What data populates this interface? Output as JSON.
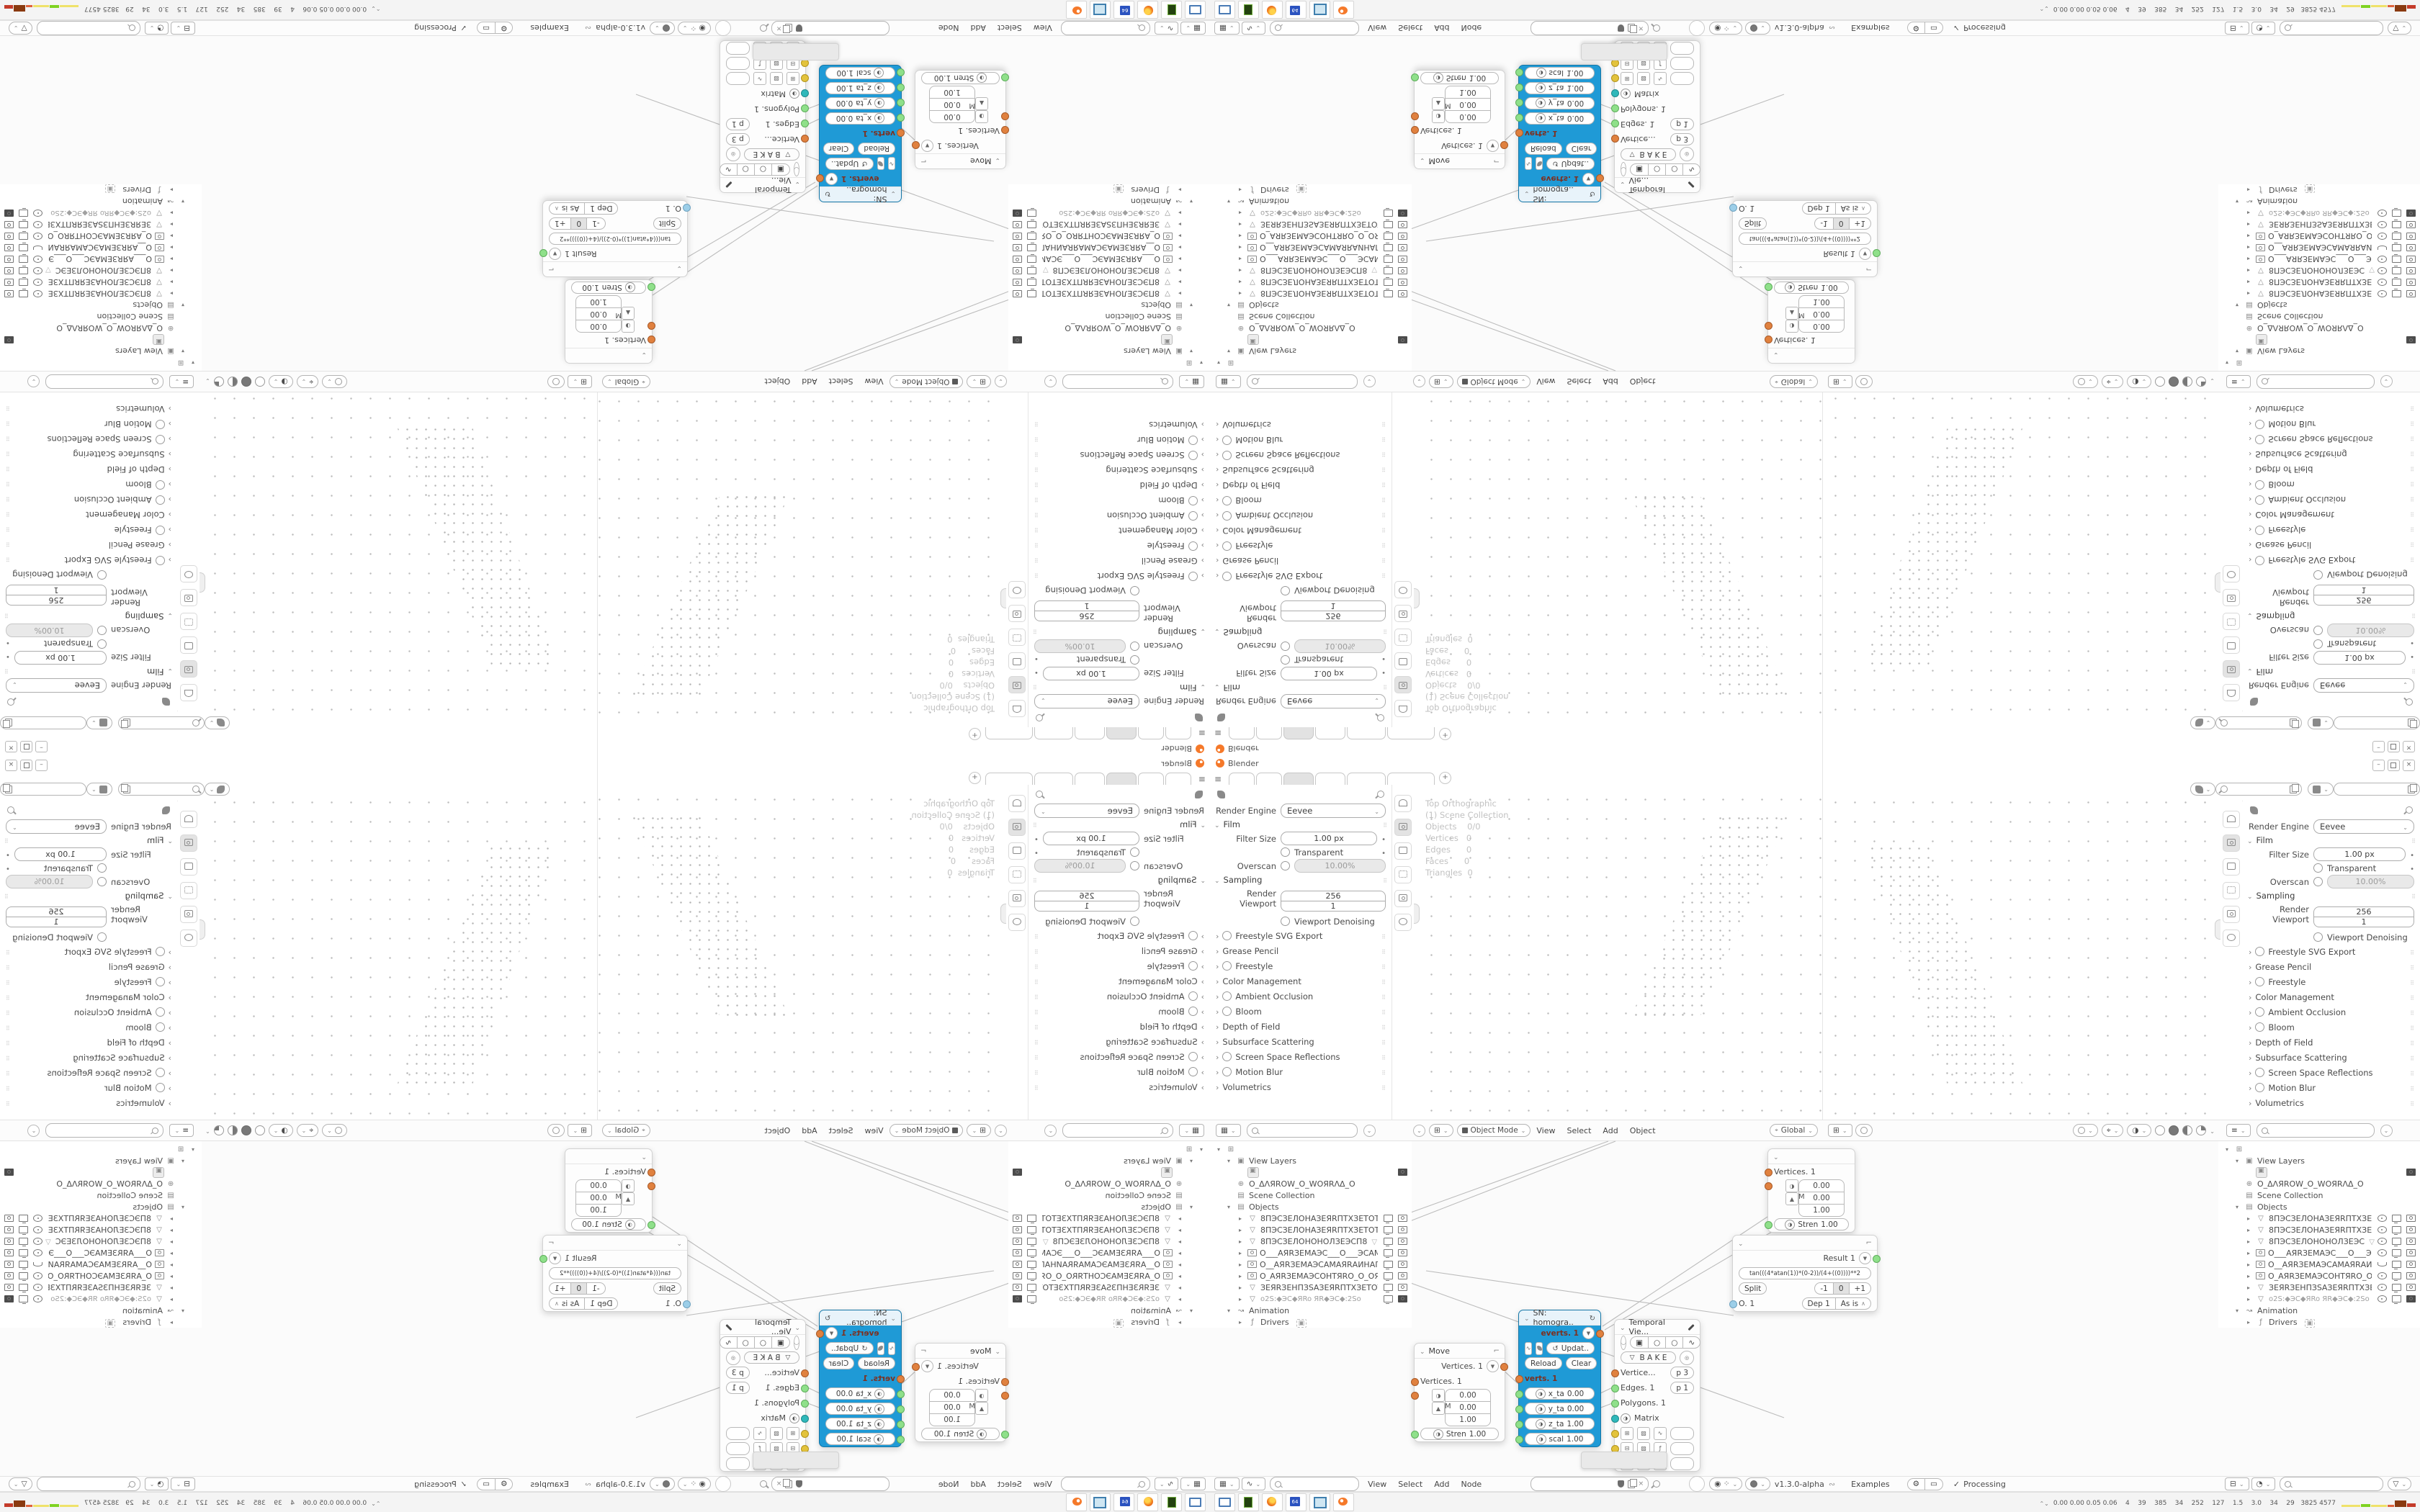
{
  "app": {
    "window_title": "Blender",
    "version": "v1.3.0-alpha",
    "examples_label": "Examples",
    "processing_label": "Processing"
  },
  "colors": {
    "accent_blue": "#1f9ad6",
    "socket_orange": "#e0813f",
    "socket_green": "#8fe08a",
    "socket_teal": "#2fb8ba",
    "socket_yellow": "#e3c33c",
    "socket_lightblue": "#9ccee8"
  },
  "workspace_tabs": {
    "count": 6,
    "active_index": 2
  },
  "properties": {
    "render_engine_label": "Render Engine",
    "render_engine_value": "Eevee",
    "film_label": "Film",
    "filter_size_label": "Filter Size",
    "filter_size_value": "1.00 px",
    "transparent_label": "Transparent",
    "overscan_label": "Overscan",
    "overscan_value": "10.00%",
    "sampling_label": "Sampling",
    "render_label": "Render",
    "render_value": "256",
    "viewport_label": "Viewport",
    "viewport_value": "1",
    "denoising_label": "Viewport Denoising",
    "sections": [
      {
        "label": "Freestyle SVG Export",
        "cb": "cb"
      },
      {
        "label": "Grease Pencil",
        "cb": "nocb"
      },
      {
        "label": "Freestyle",
        "cb": "cb"
      },
      {
        "label": "Color Management",
        "cb": "nocb"
      },
      {
        "label": "Ambient Occlusion",
        "cb": "cb"
      },
      {
        "label": "Bloom",
        "cb": "cb"
      },
      {
        "label": "Depth of Field",
        "cb": "nocb"
      },
      {
        "label": "Subsurface Scattering",
        "cb": "nocb"
      },
      {
        "label": "Screen Space Reflections",
        "cb": "cb"
      },
      {
        "label": "Motion Blur",
        "cb": "cb"
      },
      {
        "label": "Volumetrics",
        "cb": "nocb"
      }
    ]
  },
  "viewport": {
    "overlay": [
      {
        "t": "Top Orthographic"
      },
      {
        "t": "(1) Scene Collection"
      },
      {
        "t": ""
      },
      {
        "t": "Objects    0/0"
      },
      {
        "t": "Vertices   0"
      },
      {
        "t": "Edges      0"
      },
      {
        "t": "Faces      0"
      },
      {
        "t": "Triangles  0"
      }
    ],
    "header": {
      "mode": "Object Mode",
      "menus": [
        {
          "t": "View"
        },
        {
          "t": "Select"
        },
        {
          "t": "Add"
        },
        {
          "t": "Object"
        }
      ],
      "transform": "Global"
    }
  },
  "node_editor": {
    "menus": [
      {
        "t": "View"
      },
      {
        "t": "Select"
      },
      {
        "t": "Add"
      },
      {
        "t": "Node"
      }
    ],
    "nodes": {
      "move": {
        "title": "Move",
        "out_label": "Vertices. 1",
        "in_label": "Vertices. 1",
        "x": "0.00",
        "m_label": "M",
        "y": "0.00",
        "z": "1.00",
        "stren_label": "Stren",
        "stren_value": "1.00"
      },
      "sn": {
        "title": "SN: homogra..",
        "everts_label": "everts. 1",
        "update_label": "Updat..",
        "reload_label": "Reload",
        "clear_label": "Clear",
        "verts_label": "verts. 1",
        "fields": [
          [
            "x_ta",
            "0.00"
          ],
          [
            "y_ta",
            "0.00"
          ],
          [
            "z_ta",
            "1.00"
          ],
          [
            "scal",
            "1.00"
          ]
        ]
      },
      "temporal": {
        "title": "Temporal Vie...",
        "bake_label": "B A K E",
        "vertices_label": "Vertice...",
        "vertices_chip": "p  3",
        "edges_label": "Edges. 1",
        "edges_chip": "p  1",
        "polygons_label": "Polygons. 1",
        "matrix_label": "Matrix"
      },
      "formula": {
        "result_label": "Result 1",
        "expression": "tan(((4*atan(1))*(0-2))/(4+((0))))**2",
        "split_label": "Split",
        "minus": "-1",
        "zero": "0",
        "plus": "+1",
        "o_label": "O. 1",
        "dep_label": "Dep 1",
        "wrap_label": "As is"
      }
    },
    "links": [
      [
        553,
        535,
        240,
        648
      ],
      [
        563,
        535,
        252,
        656
      ],
      [
        240,
        718,
        797,
        919
      ],
      [
        774,
        640,
        545,
        792
      ],
      [
        790,
        655,
        548,
        797
      ],
      [
        404,
        850,
        428,
        872
      ],
      [
        540,
        886,
        561,
        876
      ],
      [
        540,
        906,
        561,
        898
      ],
      [
        300,
        715,
        727,
        777
      ]
    ]
  },
  "outliner": {
    "rows": [
      {
        "ind": "i0",
        "arrow": "a-open",
        "icon": "ic-root",
        "name": "",
        "eye": "e-none",
        "mon": "m-none",
        "cam": "c-none"
      },
      {
        "ind": "i1",
        "arrow": "a-open",
        "icon": "ic-vl",
        "name": "View Layers",
        "eye": "e-none",
        "mon": "m-none",
        "cam": "c-none"
      },
      {
        "ind": "i2",
        "arrow": "",
        "icon": "ic-btn",
        "name": "",
        "eye": "e-none",
        "mon": "m-none",
        "cam": "c-fill"
      },
      {
        "ind": "i1",
        "arrow": "",
        "icon": "ic-wld",
        "name": "O_ΔΛЯROW_O_WOЯRΛΔ_O",
        "eye": "e-none",
        "mon": "m-none",
        "cam": "c-none"
      },
      {
        "ind": "i1",
        "arrow": "",
        "icon": "ic-coll",
        "name": "Scene Collection",
        "eye": "e-none",
        "mon": "m-none",
        "cam": "c-none"
      },
      {
        "ind": "i1",
        "arrow": "a-open",
        "icon": "ic-coll",
        "name": "Objects",
        "eye": "e-none",
        "mon": "m-none",
        "cam": "c-none"
      },
      {
        "ind": "i2",
        "arrow": "a-clsd",
        "icon": "ic-mesh",
        "name": "8ПЭСЗЕЛОНАЗЕЯRПТХЗЕТОТЗЕХ(",
        "eye": "e-open",
        "mon": "m-on",
        "cam": "c-on"
      },
      {
        "ind": "i2",
        "arrow": "a-clsd",
        "icon": "ic-mesh",
        "name": "8ПЭСЗЕЛОНАЗЕЯRПТХЗЕТОТЗЕХ",
        "eye": "e-open",
        "mon": "m-on",
        "cam": "c-on"
      },
      {
        "ind": "i2",
        "arrow": "a-clsd",
        "icon": "ic-mesh",
        "name": "8ПЭСЗЕЛОНОНОЛЗЕЭСП8",
        "extra": "omod",
        "eye": "e-open",
        "mon": "m-on",
        "cam": "c-on"
      },
      {
        "ind": "i2",
        "arrow": "a-clsd",
        "icon": "ic-camo",
        "name": "O___АЯRЗЕМАЭС___O___ЭСАМЗЕ",
        "eye": "e-open",
        "mon": "m-on",
        "cam": "c-on"
      },
      {
        "ind": "i2",
        "arrow": "a-clsd",
        "icon": "ic-camo",
        "name": "O__АЯRЗЕМАЭСАМАЯRАИНАП__O_",
        "eye": "e-clsd",
        "mon": "m-on",
        "cam": "c-on"
      },
      {
        "ind": "i2",
        "arrow": "a-clsd",
        "icon": "ic-camo",
        "name": "O_АЯRЗЕМАЭСОНТЯRO_O_ОЯRТНЭ(",
        "eye": "e-open",
        "mon": "m-on",
        "cam": "c-on"
      },
      {
        "ind": "i2",
        "arrow": "a-clsd",
        "icon": "ic-mesh",
        "name": "ЗЕЯRЗЕНПЗSАЗЕЯRПТХЗЕТОТЗЕ(",
        "eye": "e-open",
        "mon": "m-on",
        "cam": "c-on"
      },
      {
        "ind": "i2",
        "arrow": "a-clsd",
        "icon": "ic-mesh",
        "name": "o2S:◆ЭС◆ЯRo ЯR◆ЭС◆:2So",
        "cls": "n-dim",
        "eye": "e-open",
        "mon": "m-on",
        "cam": "c-fill"
      },
      {
        "ind": "i1",
        "arrow": "a-open",
        "icon": "ic-anim",
        "name": "Animation",
        "eye": "e-none",
        "mon": "m-none",
        "cam": "c-none"
      },
      {
        "ind": "i2",
        "arrow": "a-clsd",
        "icon": "ic-drv",
        "name": "Drivers",
        "extra": "obox",
        "eye": "e-none",
        "mon": "m-none",
        "cam": "c-none"
      }
    ]
  },
  "taskbar": {
    "icons": [
      {
        "cls": "tb-monitor",
        "name": "system-settings-icon"
      },
      {
        "cls": "tb-pkg",
        "name": "package-manager-icon"
      },
      {
        "cls": "tb-firefox",
        "name": "firefox-icon"
      },
      {
        "cls": "tb-floppy",
        "name": "win64-disk-icon"
      },
      {
        "cls": "tb-shot",
        "name": "screenshot-tool-icon"
      },
      {
        "cls": "tb-blender",
        "name": "blender-app-icon"
      }
    ],
    "stats": "0.00 0.00 0.05 0.06    4    39    385    34    252    127    1.5    3.0    34    29   3825 4577",
    "spark": [
      {
        "c": "s-y"
      },
      {
        "c": "s-g"
      },
      {
        "c": "s-y2"
      },
      {
        "c": "s-r"
      },
      {
        "c": "s-br"
      },
      {
        "c": "s-rd"
      }
    ]
  }
}
